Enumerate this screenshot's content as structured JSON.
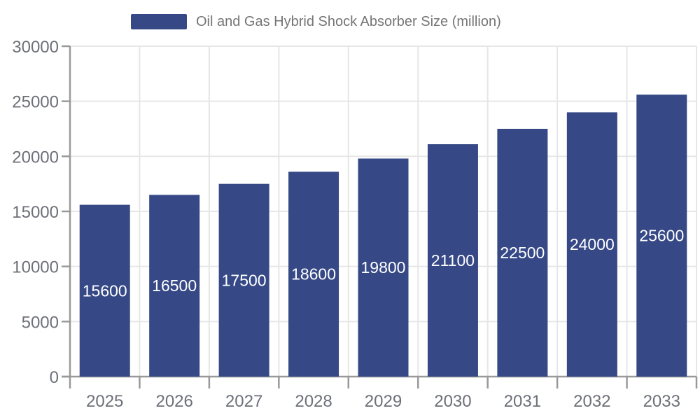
{
  "chart_data": {
    "type": "bar",
    "title": "Oil and Gas Hybrid Shock Absorber Size (million)",
    "categories": [
      "2025",
      "2026",
      "2027",
      "2028",
      "2029",
      "2030",
      "2031",
      "2032",
      "2033"
    ],
    "series": [
      {
        "name": "Oil and Gas Hybrid Shock Absorber Size (million)",
        "values": [
          15600,
          16500,
          17500,
          18600,
          19800,
          21100,
          22500,
          24000,
          25600
        ]
      }
    ],
    "xlabel": "",
    "ylabel": "",
    "ylim": [
      0,
      30000
    ],
    "yticks": [
      0,
      5000,
      10000,
      15000,
      20000,
      25000,
      30000
    ],
    "grid": true,
    "legend_position": "top-center",
    "bar_labels_inside": true,
    "colors": {
      "bar": "#364986",
      "bar_label": "#ffffff",
      "axis_line": "#999999",
      "gridline": "#e6e6e6",
      "axis_text": "#6e7079",
      "legend_text": "#757575",
      "background": "#ffffff"
    }
  }
}
